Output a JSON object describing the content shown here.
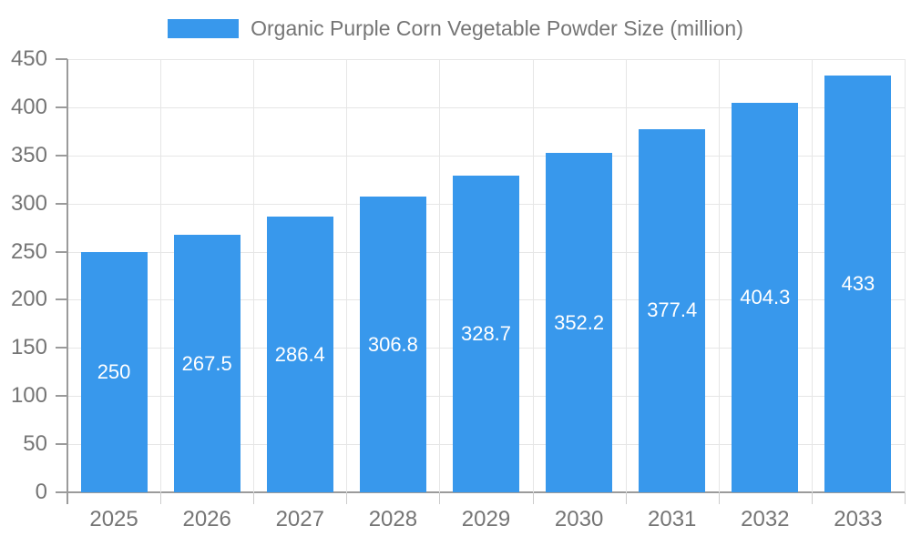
{
  "legend": {
    "position": "top",
    "label": "Organic Purple Corn Vegetable Powder Size (million)"
  },
  "chart_data": {
    "type": "bar",
    "title": "Organic Purple Corn Vegetable Powder Size (million)",
    "categories": [
      "2025",
      "2026",
      "2027",
      "2028",
      "2029",
      "2030",
      "2031",
      "2032",
      "2033"
    ],
    "values": [
      250,
      267.5,
      286.4,
      306.8,
      328.7,
      352.2,
      377.4,
      404.3,
      433
    ],
    "value_labels": [
      "250",
      "267.5",
      "286.4",
      "306.8",
      "328.7",
      "352.2",
      "377.4",
      "404.3",
      "433"
    ],
    "xlabel": "",
    "ylabel": "",
    "ylim": [
      0,
      450
    ],
    "yticks": [
      0,
      50,
      100,
      150,
      200,
      250,
      300,
      350,
      400,
      450
    ],
    "grid": true,
    "legend_position": "top"
  },
  "colors": {
    "bar": "#3898EC",
    "bar_label": "#ffffff",
    "axis_text": "#757575",
    "grid_line": "#e6e6e6",
    "axis_line": "#9b9b9b",
    "minor_tick": "#cccccc",
    "background": "#ffffff"
  }
}
